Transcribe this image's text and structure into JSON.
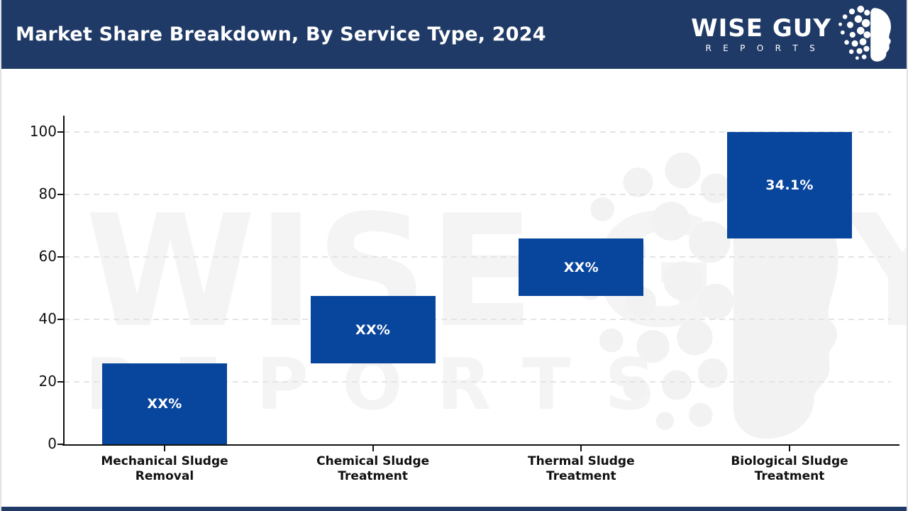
{
  "page": {
    "navy": "#1f3a66",
    "bar_blue": "#08459c",
    "grid_color": "#e4e4e4"
  },
  "header": {
    "title": "Market Share Breakdown, By Service Type, 2024",
    "logo_line1": "WISE GUY",
    "logo_line2": "REPORTS"
  },
  "watermark": {
    "line1": "WISE GUY",
    "line2": "REPORTS"
  },
  "chart_data": {
    "type": "bar",
    "subtype": "floating-waterfall",
    "title": "Market Share Breakdown, By Service Type, 2024",
    "categories": [
      "Mechanical Sludge Removal",
      "Chemical Sludge Treatment",
      "Thermal Sludge Treatment",
      "Biological Sludge Treatment"
    ],
    "category_lines": [
      [
        "Mechanical Sludge",
        "Removal"
      ],
      [
        "Chemical Sludge",
        "Treatment"
      ],
      [
        "Thermal Sludge",
        "Treatment"
      ],
      [
        "Biological Sludge",
        "Treatment"
      ]
    ],
    "series": [
      {
        "name": "Market Share",
        "segments": [
          {
            "start": 0,
            "end": 25.9,
            "label": "XX%"
          },
          {
            "start": 25.9,
            "end": 47.5,
            "label": "XX%"
          },
          {
            "start": 47.5,
            "end": 65.9,
            "label": "XX%"
          },
          {
            "start": 65.9,
            "end": 100,
            "label": "34.1%"
          }
        ]
      }
    ],
    "ylim": [
      0,
      100
    ],
    "yticks": [
      "0",
      "20",
      "40",
      "60",
      "80",
      "100"
    ],
    "ytick_values": [
      0,
      20,
      40,
      60,
      80,
      100
    ],
    "xlabel": "",
    "ylabel": "",
    "grid": "horizontal-dashed",
    "legend": "none",
    "bar_color": "#08459c",
    "bar_label_color": "#ffffff"
  }
}
